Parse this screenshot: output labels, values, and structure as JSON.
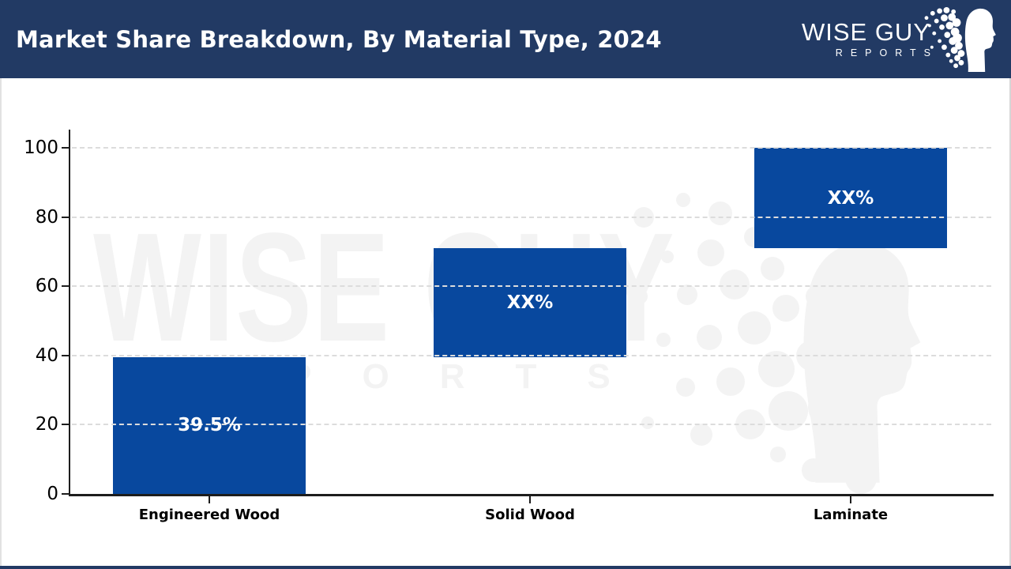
{
  "header": {
    "title": "Market Share Breakdown, By Material Type, 2024",
    "logo": {
      "brand": "WISE GUY",
      "sub": "REPORTS"
    }
  },
  "watermark": {
    "brand": "WISE GUY",
    "sub": "REPORTS"
  },
  "chart_data": {
    "type": "bar",
    "subtype": "waterfall",
    "title": "Market Share Breakdown, By Material Type, 2024",
    "categories": [
      "Engineered Wood",
      "Solid Wood",
      "Laminate"
    ],
    "bars": [
      {
        "category": "Engineered Wood",
        "start": 0,
        "end": 39.5,
        "label": "39.5%"
      },
      {
        "category": "Solid Wood",
        "start": 39.5,
        "end": 71,
        "label": "XX%"
      },
      {
        "category": "Laminate",
        "start": 71,
        "end": 100,
        "label": "XX%"
      }
    ],
    "yticks": [
      0,
      20,
      40,
      60,
      80,
      100
    ],
    "ylim": [
      0,
      105
    ],
    "xlabel": "",
    "ylabel": "",
    "grid": {
      "axis": "y",
      "style": "dashed"
    },
    "legend": false,
    "colors": {
      "bar": "#08489e",
      "bar_label": "#ffffff",
      "header_bg": "#223a64",
      "grid_line": "#dcdcdc",
      "axis_line": "#1d1d1d",
      "watermark": "#f3f3f3"
    }
  }
}
